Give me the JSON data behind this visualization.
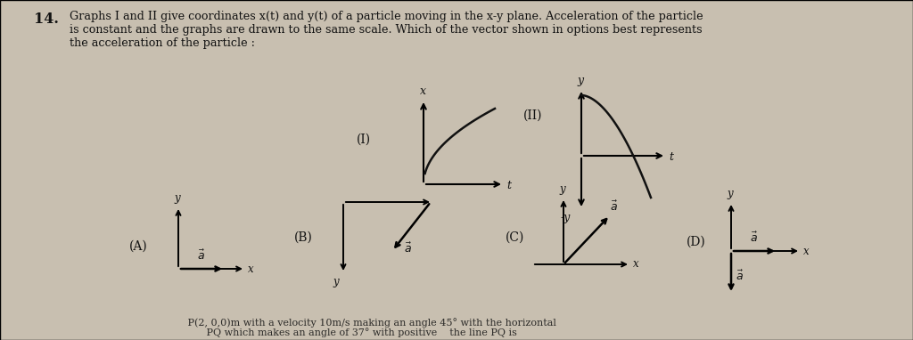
{
  "bg_color": "#c8bfb0",
  "text_color": "#111111",
  "graph_I_label": "(I)",
  "graph_II_label": "(II)",
  "option_A_label": "(A)",
  "option_B_label": "(B)",
  "option_C_label": "(C)",
  "option_D_label": "(D)",
  "line1": "Graphs I and II give coordinates x(t) and y(t) of a particle moving in the x-y plane. Acceleration of the particle",
  "line2": "is constant and the graphs are drawn to the same scale. Which of the vector shown in options best represents",
  "line3": "the acceleration of the particle :",
  "bottom1": "   P(2, 0,0)m with a velocity 10m/s making an angle 45° with the horizontal",
  "bottom2": "         PQ which makes an angle of 37° with positive    the line PQ is"
}
